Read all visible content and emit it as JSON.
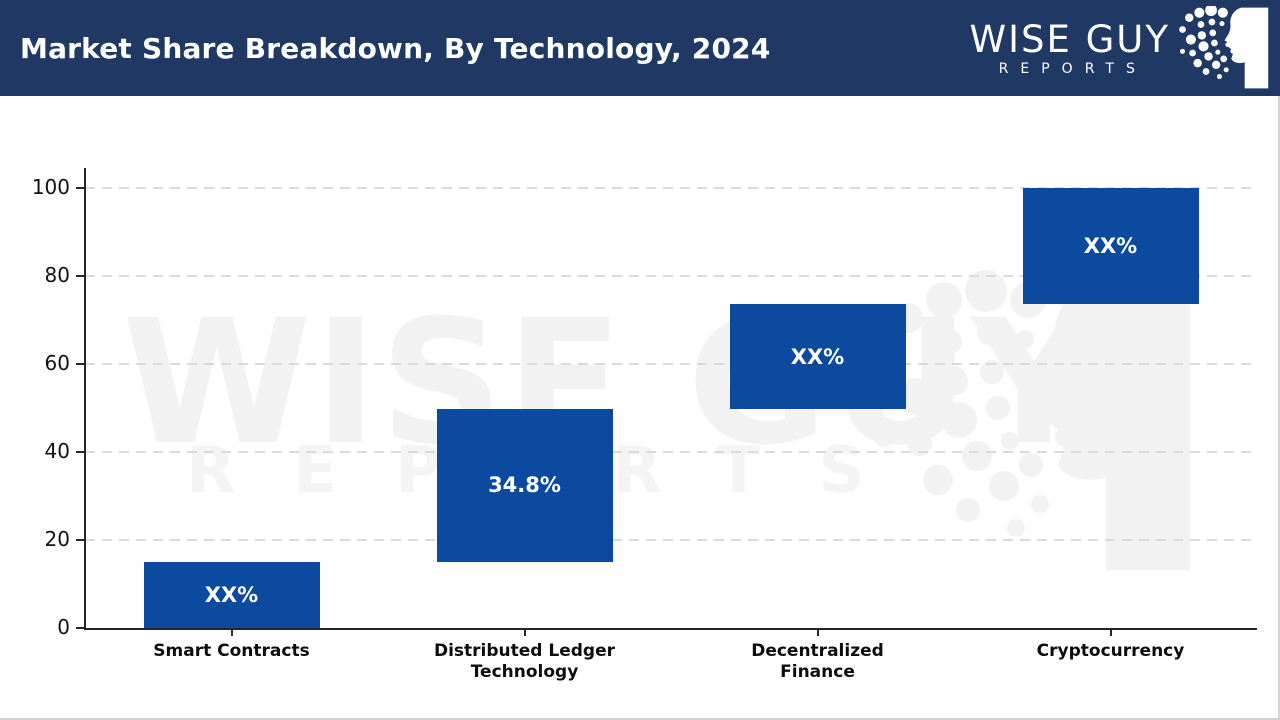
{
  "header": {
    "title": "Market Share Breakdown, By Technology, 2024",
    "bg_color": "#1f3864",
    "logo": {
      "line1": "WISE GUY",
      "line2": "REPORTS"
    }
  },
  "watermark": {
    "line1": "WISE GUY",
    "line2": "REPORTS"
  },
  "chart_data": {
    "type": "bar",
    "subtype": "floating-waterfall",
    "title": "Market Share Breakdown, By Technology, 2024",
    "xlabel": "",
    "ylabel": "",
    "ylim": [
      0,
      100
    ],
    "yticks": [
      0,
      20,
      40,
      60,
      80,
      100
    ],
    "grid": "horizontal-dashed",
    "legend": "none",
    "bar_color": "#0b4a9f",
    "bar_label_color": "#ffffff",
    "categories": [
      "Smart Contracts",
      "Distributed Ledger Technology",
      "Decentralized Finance",
      "Cryptocurrency"
    ],
    "category_label_lines": [
      [
        "Smart Contracts"
      ],
      [
        "Distributed Ledger",
        "Technology"
      ],
      [
        "Decentralized",
        "Finance"
      ],
      [
        "Cryptocurrency"
      ]
    ],
    "series": [
      {
        "name": "Market Share %",
        "segments": [
          {
            "category": "Smart Contracts",
            "base": 0,
            "value": 15.0,
            "top": 15.0,
            "label": "XX%"
          },
          {
            "category": "Distributed Ledger Technology",
            "base": 15.0,
            "value": 34.8,
            "top": 49.8,
            "label": "34.8%"
          },
          {
            "category": "Decentralized Finance",
            "base": 49.8,
            "value": 23.8,
            "top": 73.6,
            "label": "XX%"
          },
          {
            "category": "Cryptocurrency",
            "base": 73.6,
            "value": 26.4,
            "top": 100.0,
            "label": "XX%"
          }
        ]
      }
    ]
  }
}
